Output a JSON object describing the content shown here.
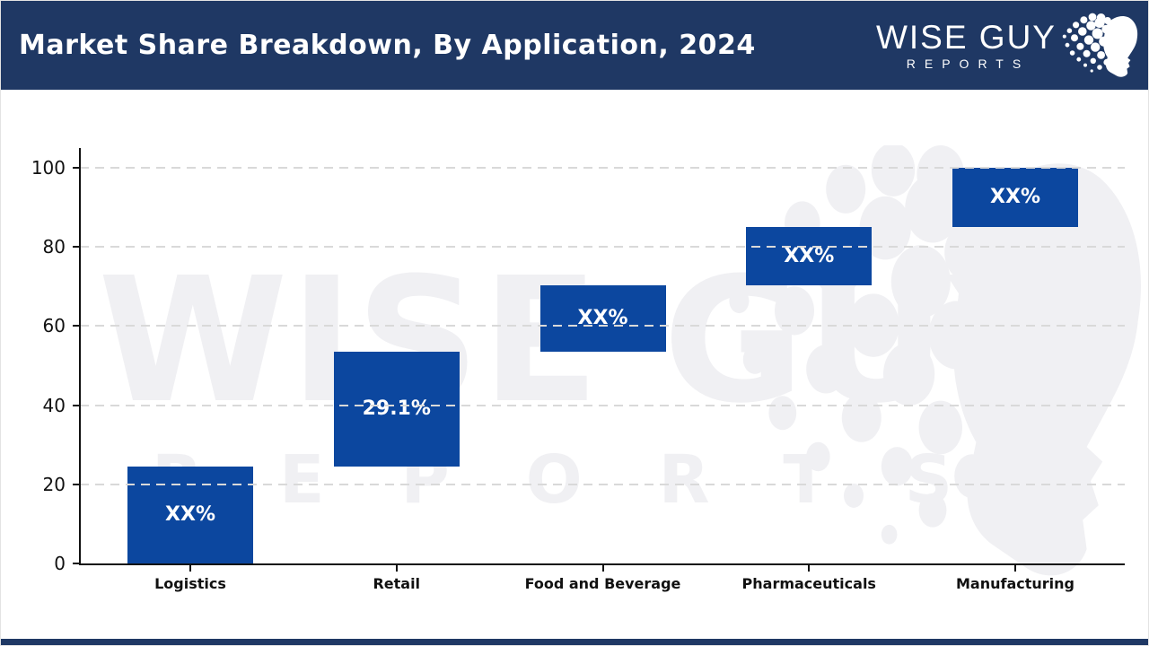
{
  "header": {
    "title": "Market Share Breakdown, By Application, 2024",
    "bg_color": "#1f3864",
    "text_color": "#ffffff",
    "logo": {
      "wordmark": "WISE GUY",
      "subtitle": "REPORTS"
    }
  },
  "watermark": {
    "wordmark": "WISE GUY",
    "subtitle": "REPORTS"
  },
  "chart_data": {
    "type": "bar",
    "subtype": "waterfall",
    "title": "Market Share Breakdown, By Application, 2024",
    "categories": [
      "Logistics",
      "Retail",
      "Food and Beverage",
      "Pharmaceuticals",
      "Manufacturing"
    ],
    "segments": [
      {
        "category": "Logistics",
        "start": 0,
        "end": 24.5,
        "label": "XX%"
      },
      {
        "category": "Retail",
        "start": 24.5,
        "end": 53.6,
        "label": "29.1%"
      },
      {
        "category": "Food and Beverage",
        "start": 53.6,
        "end": 70.4,
        "label": "XX%"
      },
      {
        "category": "Pharmaceuticals",
        "start": 70.4,
        "end": 85.1,
        "label": "XX%"
      },
      {
        "category": "Manufacturing",
        "start": 85.1,
        "end": 100,
        "label": "XX%"
      }
    ],
    "ylim": [
      0,
      100
    ],
    "yticks": [
      0,
      20,
      40,
      60,
      80,
      100
    ],
    "xlabel": "",
    "ylabel": "",
    "grid": {
      "axis": "y",
      "style": "dashed",
      "color": "#d9d9d9",
      "on": true
    },
    "legend": null,
    "bar_color": "#0c479f",
    "bar_label_color": "#ffffff",
    "axis_color": "#111111",
    "tick_label_color": "#111111"
  },
  "footer": {
    "bg_color": "#1f3864"
  }
}
